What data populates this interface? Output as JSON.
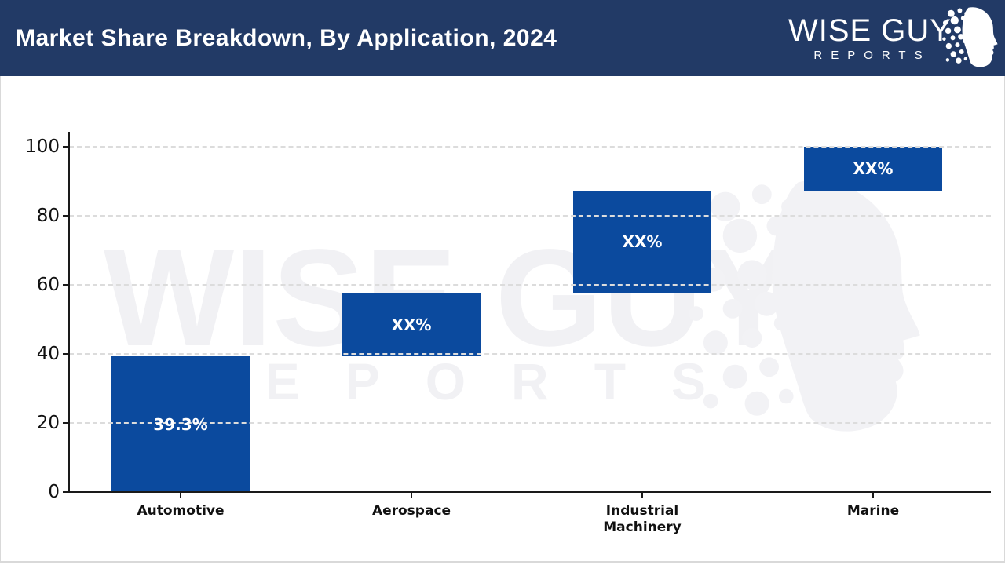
{
  "header": {
    "title": "Market Share Breakdown, By Application, 2024",
    "logo": {
      "name": "WISE GUY",
      "sub": "REPORTS"
    }
  },
  "watermark": {
    "name": "WISE GUY",
    "sub": "REPORTS"
  },
  "chart_data": {
    "type": "bar",
    "subtype": "waterfall",
    "title": "Market Share Breakdown, By Application, 2024",
    "categories": [
      "Automotive",
      "Aerospace",
      "Industrial Machinery",
      "Marine"
    ],
    "segments": [
      {
        "category": "Automotive",
        "start": 0,
        "end": 39.3,
        "label": "39.3%"
      },
      {
        "category": "Aerospace",
        "start": 39.3,
        "end": 57.6,
        "label": "XX%"
      },
      {
        "category": "Industrial Machinery",
        "start": 57.6,
        "end": 87.2,
        "label": "XX%"
      },
      {
        "category": "Marine",
        "start": 87.2,
        "end": 100,
        "label": "XX%"
      }
    ],
    "xlabel": "",
    "ylabel": "",
    "ylim": [
      0,
      100
    ],
    "yticks": [
      0,
      20,
      40,
      60,
      80,
      100
    ],
    "grid": "horizontal-dashed",
    "legend": "none",
    "colors": {
      "bar": "#0B4A9E",
      "bar_label": "#FFFFFF",
      "axis": "#1A1A1A",
      "tick_label": "#111111",
      "gridline": "#DCDCDC",
      "header_bg": "#223A66",
      "header_text": "#FFFFFF",
      "watermark": "#F1F1F4"
    }
  }
}
